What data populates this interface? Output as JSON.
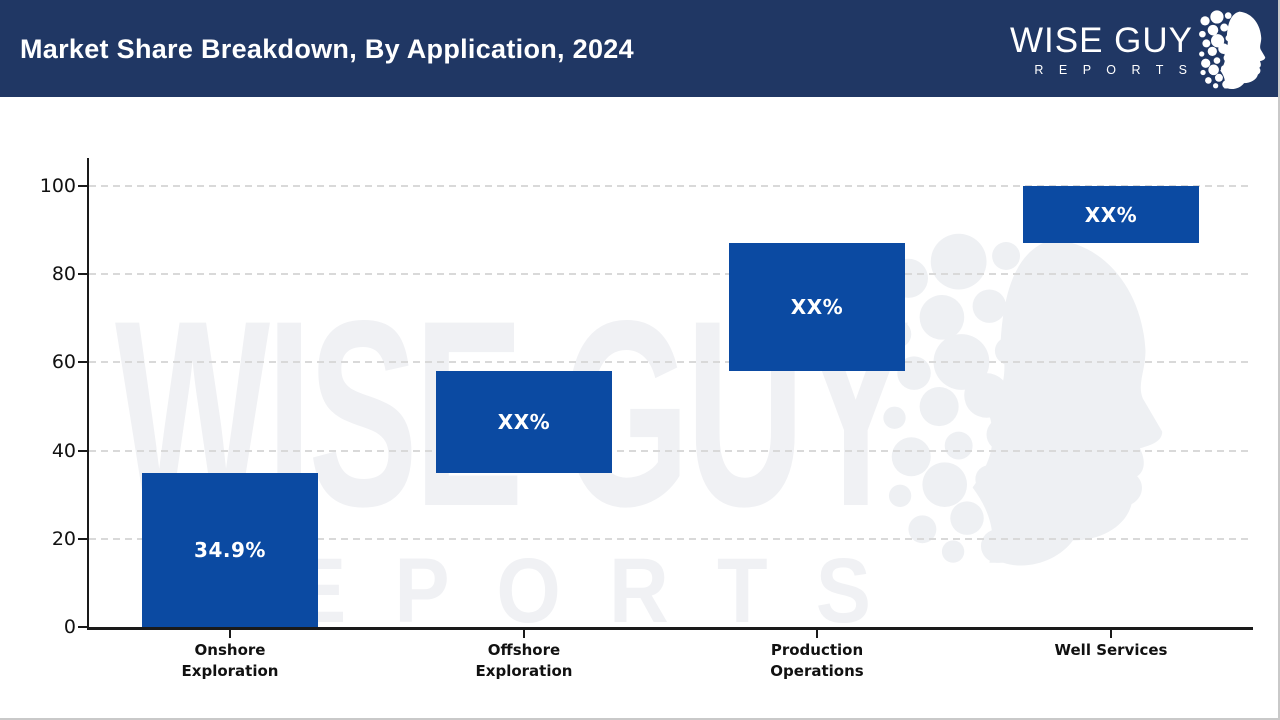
{
  "header": {
    "title": "Market Share Breakdown, By Application, 2024",
    "brand": {
      "line1": "WISE GUY",
      "line2": "R E P O R T S"
    }
  },
  "watermark": {
    "line1": "WISE GUY",
    "line2": "R E P O R T S"
  },
  "chart_data": {
    "type": "bar",
    "subtype": "waterfall",
    "title": "Market Share Breakdown, By Application, 2024",
    "categories": [
      "Onshore Exploration",
      "Offshore Exploration",
      "Production Operations",
      "Well Services"
    ],
    "category_lines": [
      [
        "Onshore",
        "Exploration"
      ],
      [
        "Offshore",
        "Exploration"
      ],
      [
        "Production",
        "Operations"
      ],
      [
        "Well Services"
      ]
    ],
    "bars": [
      {
        "category": "Onshore Exploration",
        "label": "34.9%",
        "start": 0,
        "end": 34.9
      },
      {
        "category": "Offshore Exploration",
        "label": "XX%",
        "start": 34.9,
        "end": 58
      },
      {
        "category": "Production Operations",
        "label": "XX%",
        "start": 58,
        "end": 87
      },
      {
        "category": "Well Services",
        "label": "XX%",
        "start": 87,
        "end": 100
      }
    ],
    "ylabel": "",
    "xlabel": "",
    "yticks": [
      0,
      20,
      40,
      60,
      80,
      100
    ],
    "ylim": [
      0,
      105
    ],
    "grid": "horizontal-dashed",
    "legend": "none",
    "colors": {
      "bar": "#0b4aa2",
      "bar_label": "#ffffff",
      "grid": "#d9d9d9",
      "axis": "#1a1a1a",
      "header_bg": "#203764",
      "watermark": "#f0f1f4"
    }
  }
}
